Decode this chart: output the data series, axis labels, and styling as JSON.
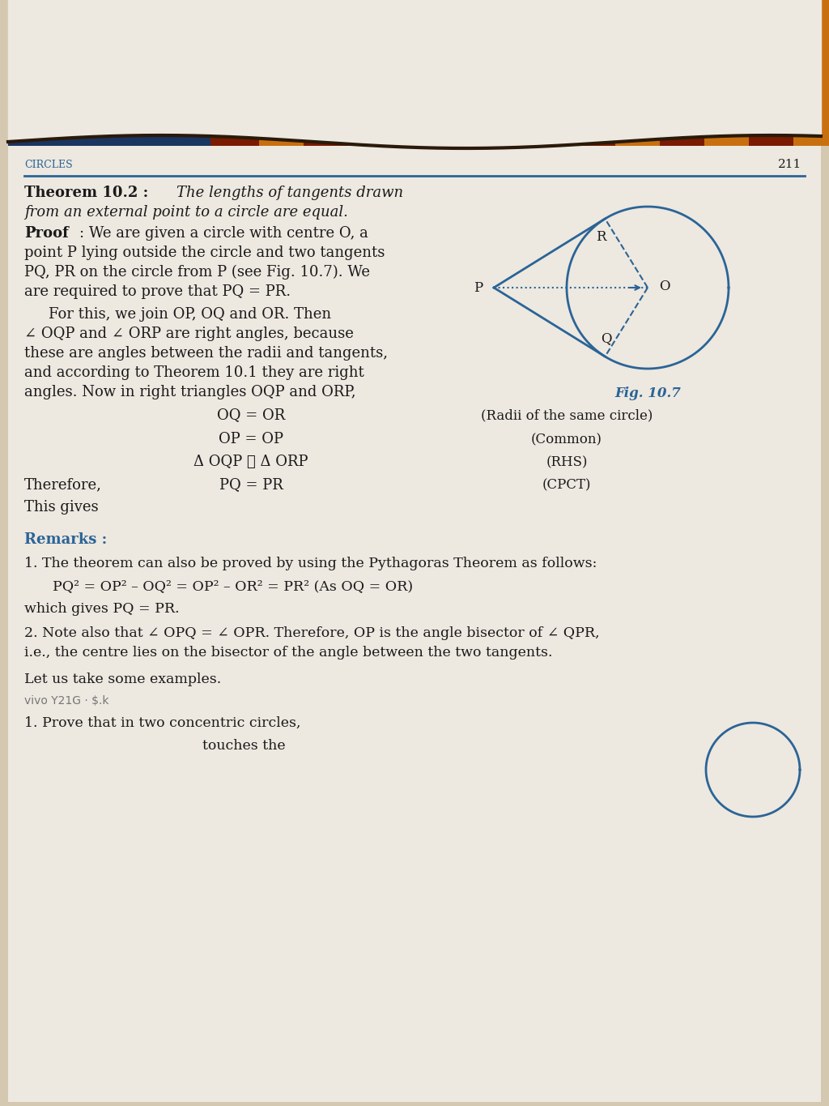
{
  "background_color": "#d4c8b0",
  "page_background": "#ede8e0",
  "header_text_display": "CIRCLES",
  "page_number": "211",
  "blue_color": "#2a6496",
  "dark_blue": "#1a4a7a",
  "text_color": "#1a1a1a",
  "fig_label": "Fig. 10.7"
}
